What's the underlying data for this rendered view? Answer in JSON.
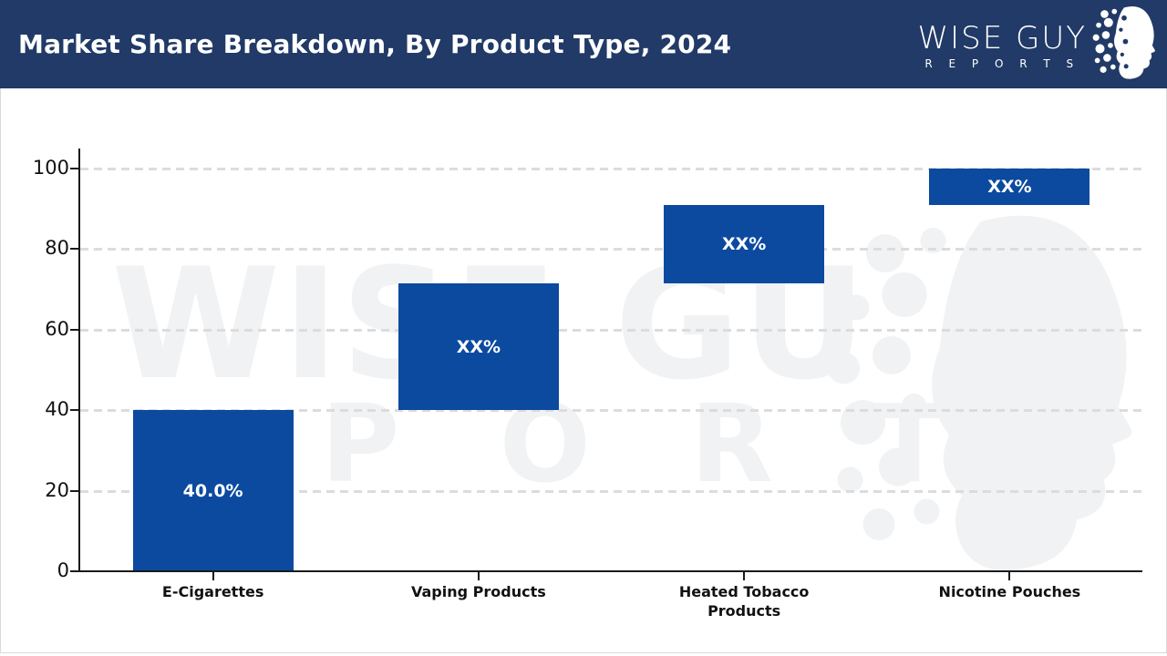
{
  "header": {
    "title": "Market Share Breakdown, By Product Type, 2024",
    "logo": {
      "line1": "WISE GUY",
      "line2": "R E P O R T S"
    }
  },
  "watermark": {
    "line1": "WISE GU",
    "line2": "P O R T S"
  },
  "chart_data": {
    "type": "bar",
    "subtype": "waterfall",
    "title": "Market Share Breakdown, By Product Type, 2024",
    "categories": [
      "E-Cigarettes",
      "Vaping Products",
      "Heated Tobacco\nProducts",
      "Nicotine Pouches"
    ],
    "segments": [
      {
        "category": "E-Cigarettes",
        "start": 0,
        "end": 40,
        "label": "40.0%"
      },
      {
        "category": "Vaping Products",
        "start": 40,
        "end": 71.5,
        "label": "XX%"
      },
      {
        "category": "Heated Tobacco Products",
        "start": 71.5,
        "end": 91,
        "label": "XX%"
      },
      {
        "category": "Nicotine Pouches",
        "start": 91,
        "end": 100,
        "label": "XX%"
      }
    ],
    "y_ticks": [
      0,
      20,
      40,
      60,
      80,
      100
    ],
    "ylim": [
      0,
      105
    ],
    "xlabel": "",
    "ylabel": "",
    "grid": "horizontal-dashed",
    "legend": "none",
    "bar_color": "#0b4a9f",
    "bar_label_color": "#ffffff"
  },
  "colors": {
    "header_bg": "#213a67",
    "watermark": "#f1f2f4",
    "gridline": "#dcdcdc",
    "axis": "#1a1a1a",
    "frame_border": "#d9d9d9"
  }
}
